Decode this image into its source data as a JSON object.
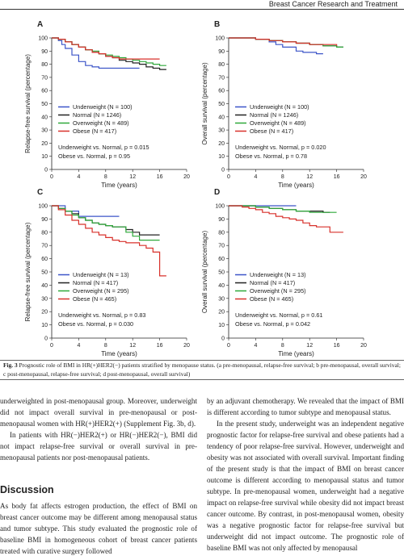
{
  "header": {
    "journal": "Breast Cancer Research and Treatment"
  },
  "legend_sets": {
    "pre": [
      "Underweight (N = 100)",
      "Normal (N = 1246)",
      "Overweight (N = 489)",
      "Obese (N = 417)"
    ],
    "post": [
      "Underweight (N = 13)",
      "Normal (N = 417)",
      "Overweight (N = 295)",
      "Obese (N = 465)"
    ]
  },
  "colors": {
    "underweight": "#3c55c8",
    "normal": "#222222",
    "overweight": "#2ea83a",
    "obese": "#d8312b"
  },
  "chart_data": [
    {
      "panel": "A",
      "type": "line",
      "xlabel": "Time (years)",
      "ylabel": "Relapse-free survival (percentage)",
      "xlim": [
        0,
        20
      ],
      "ylim": [
        0,
        100
      ],
      "xticks": [
        0,
        4,
        8,
        12,
        16,
        20
      ],
      "yticks": [
        0,
        10,
        20,
        30,
        40,
        50,
        60,
        70,
        80,
        90,
        100
      ],
      "legend_key": "pre",
      "pvalues": [
        "Underweight vs. Normal, p = 0.015",
        "Obese vs. Normal, p = 0.95"
      ],
      "series": [
        {
          "name": "Underweight (N = 100)",
          "color": "underweight",
          "x": [
            0,
            1,
            1.5,
            2,
            3,
            4,
            5,
            6,
            7,
            8,
            9,
            10,
            11,
            13
          ],
          "y": [
            100,
            98,
            95,
            92,
            87,
            82,
            79,
            78,
            77,
            77,
            77,
            77,
            77,
            77
          ]
        },
        {
          "name": "Normal (N = 1246)",
          "color": "normal",
          "x": [
            0,
            1,
            2,
            3,
            4,
            5,
            6,
            7,
            8,
            9,
            10,
            11,
            12,
            13,
            14,
            15,
            16,
            17
          ],
          "y": [
            100,
            99,
            97,
            95,
            93,
            91,
            89,
            88,
            86,
            85,
            83,
            82,
            81,
            80,
            78,
            77,
            76,
            76
          ]
        },
        {
          "name": "Overweight (N = 489)",
          "color": "overweight",
          "x": [
            0,
            1,
            2,
            3,
            4,
            5,
            6,
            7,
            8,
            9,
            10,
            11,
            12,
            13,
            14,
            15,
            16,
            17
          ],
          "y": [
            100,
            99,
            97,
            95,
            93,
            91,
            90,
            88,
            87,
            86,
            85,
            84,
            83,
            82,
            81,
            80,
            79,
            79
          ]
        },
        {
          "name": "Obese (N = 417)",
          "color": "obese",
          "x": [
            0,
            1,
            2,
            3,
            4,
            5,
            6,
            7,
            8,
            9,
            10,
            11,
            12,
            13,
            14,
            15,
            16
          ],
          "y": [
            100,
            99,
            97,
            95,
            93,
            91,
            89,
            88,
            86,
            85,
            84,
            84,
            84,
            84,
            84,
            84,
            84
          ]
        }
      ]
    },
    {
      "panel": "B",
      "type": "line",
      "xlabel": "Time (years)",
      "ylabel": "Overall survival (percentage)",
      "xlim": [
        0,
        20
      ],
      "ylim": [
        0,
        100
      ],
      "xticks": [
        0,
        4,
        8,
        12,
        16,
        20
      ],
      "yticks": [
        0,
        10,
        20,
        30,
        40,
        50,
        60,
        70,
        80,
        90,
        100
      ],
      "legend_key": "pre",
      "pvalues": [
        "Underweight vs. Normal, p = 0.020",
        "Obese vs. Normal, p = 0.78"
      ],
      "series": [
        {
          "name": "Underweight (N = 100)",
          "color": "underweight",
          "x": [
            0,
            2,
            4,
            6,
            7,
            8,
            10,
            11,
            13,
            14
          ],
          "y": [
            100,
            100,
            99,
            97,
            95,
            93,
            90,
            89,
            88,
            88
          ]
        },
        {
          "name": "Normal (N = 1246)",
          "color": "normal",
          "x": [
            0,
            2,
            4,
            6,
            8,
            10,
            12,
            14,
            16,
            17
          ],
          "y": [
            100,
            100,
            99,
            98,
            97,
            96,
            95,
            94,
            93,
            93
          ]
        },
        {
          "name": "Overweight (N = 489)",
          "color": "overweight",
          "x": [
            0,
            2,
            4,
            6,
            8,
            10,
            12,
            14,
            16,
            17
          ],
          "y": [
            100,
            100,
            99,
            98,
            97,
            96,
            95,
            94,
            93,
            93
          ]
        },
        {
          "name": "Obese (N = 417)",
          "color": "obese",
          "x": [
            0,
            2,
            4,
            6,
            8,
            10,
            12,
            14,
            16
          ],
          "y": [
            100,
            100,
            99,
            98,
            97,
            96,
            95,
            95,
            94
          ]
        }
      ]
    },
    {
      "panel": "C",
      "type": "line",
      "xlabel": "Time (years)",
      "ylabel": "Relapse-free survival (percentage)",
      "xlim": [
        0,
        20
      ],
      "ylim": [
        0,
        100
      ],
      "xticks": [
        0,
        4,
        8,
        12,
        16,
        20
      ],
      "yticks": [
        0,
        10,
        20,
        30,
        40,
        50,
        60,
        70,
        80,
        90,
        100
      ],
      "legend_key": "post",
      "pvalues": [
        "Underweight vs. Normal, p = 0.83",
        "Obese vs. Normal, p = 0.030"
      ],
      "series": [
        {
          "name": "Underweight (N = 13)",
          "color": "underweight",
          "x": [
            0,
            2,
            4,
            6,
            8,
            10
          ],
          "y": [
            100,
            96,
            92,
            92,
            92,
            92
          ]
        },
        {
          "name": "Normal (N = 417)",
          "color": "normal",
          "x": [
            0,
            1,
            2,
            3,
            4,
            5,
            6,
            7,
            8,
            9,
            10,
            11,
            12,
            13,
            14,
            15,
            16
          ],
          "y": [
            100,
            98,
            96,
            94,
            91,
            89,
            87,
            86,
            85,
            84,
            84,
            82,
            80,
            78,
            78,
            78,
            78
          ]
        },
        {
          "name": "Overweight (N = 295)",
          "color": "overweight",
          "x": [
            0,
            1,
            2,
            3,
            4,
            5,
            6,
            7,
            8,
            9,
            10,
            11,
            12,
            13,
            14,
            15,
            16
          ],
          "y": [
            100,
            98,
            96,
            93,
            91,
            89,
            87,
            86,
            85,
            84,
            84,
            80,
            77,
            74,
            74,
            74,
            74
          ]
        },
        {
          "name": "Obese (N = 465)",
          "color": "obese",
          "x": [
            0,
            1,
            2,
            3,
            4,
            5,
            6,
            7,
            8,
            9,
            10,
            11,
            12,
            13,
            14,
            15,
            16,
            17
          ],
          "y": [
            100,
            97,
            93,
            89,
            86,
            83,
            80,
            78,
            76,
            74,
            73,
            72,
            72,
            70,
            68,
            65,
            47,
            47
          ]
        }
      ]
    },
    {
      "panel": "D",
      "type": "line",
      "xlabel": "Time (years)",
      "ylabel": "Overall survival (percentage)",
      "xlim": [
        0,
        20
      ],
      "ylim": [
        0,
        100
      ],
      "xticks": [
        0,
        4,
        8,
        12,
        16,
        20
      ],
      "yticks": [
        0,
        10,
        20,
        30,
        40,
        50,
        60,
        70,
        80,
        90,
        100
      ],
      "legend_key": "post",
      "pvalues": [
        "Underweight vs. Normal, p = 0.61",
        "Obese vs. Normal, p = 0.042"
      ],
      "series": [
        {
          "name": "Underweight (N = 13)",
          "color": "underweight",
          "x": [
            0,
            4,
            8,
            10
          ],
          "y": [
            100,
            100,
            100,
            100
          ]
        },
        {
          "name": "Normal (N = 417)",
          "color": "normal",
          "x": [
            0,
            2,
            4,
            6,
            8,
            10,
            12,
            14,
            15
          ],
          "y": [
            100,
            100,
            99,
            98,
            97,
            96,
            96,
            95,
            95
          ]
        },
        {
          "name": "Overweight (N = 295)",
          "color": "overweight",
          "x": [
            0,
            2,
            4,
            6,
            8,
            10,
            12,
            14,
            16
          ],
          "y": [
            100,
            100,
            99,
            98,
            97,
            96,
            95,
            95,
            95
          ]
        },
        {
          "name": "Obese (N = 465)",
          "color": "obese",
          "x": [
            0,
            1,
            2,
            3,
            4,
            5,
            6,
            7,
            8,
            9,
            10,
            11,
            12,
            13,
            14,
            15,
            16,
            17
          ],
          "y": [
            100,
            100,
            99,
            98,
            97,
            95,
            94,
            92,
            91,
            90,
            89,
            87,
            85,
            84,
            84,
            80,
            80,
            80
          ]
        }
      ]
    }
  ],
  "caption": {
    "label": "Fig. 3",
    "text": "Prognostic role of BMI in HR(+)HER2(−) patients stratified by menopause status. (a pre-menopausal, relapse-free survival; b pre-menopausal, overall survival; c post-menopausal, relapse-free survival; d post-menopausal, overall survival)"
  },
  "body": {
    "left_p1": "underweighted in post-menopausal group. Moreover, underweight did not impact overall survival in pre-menopausal or post-menopausal women with HR(+)HER2(+) (Supplement Fig. 3b, d).",
    "left_p2": "In patients with HR(−)HER2(+) or HR(−)HER2(−), BMI did not impact relapse-free survival or overall survival in pre-menopausal patients nor post-menopausal patients.",
    "heading": "Discussion",
    "left_p3": "As body fat affects estrogen production, the effect of BMI on breast cancer outcome may be different among menopausal status and tumor subtype. This study evaluated the prognostic role of baseline BMI in homogeneous cohort of breast cancer patients treated with curative surgery followed",
    "right_p1": "by an adjuvant chemotherapy. We revealed that the impact of BMI is different according to tumor subtype and menopausal status.",
    "right_p2": "In the present study, underweight was an independent negative prognostic factor for relapse-free survival and obese patients had a tendency of poor relapse-free survival. However, underweight and obesity was not associated with overall survival. Important finding of the present study is that the impact of BMI on breast cancer outcome is different according to menopausal status and tumor subtype. In pre-menopausal women, underweight had a negative impact on relapse-free survival while obesity did not impact breast cancer outcome. By contrast, in post-menopausal women, obesity was a negative prognostic factor for relapse-free survival but underweight did not impact outcome. The prognostic role of baseline BMI was not only affected by menopausal"
  }
}
